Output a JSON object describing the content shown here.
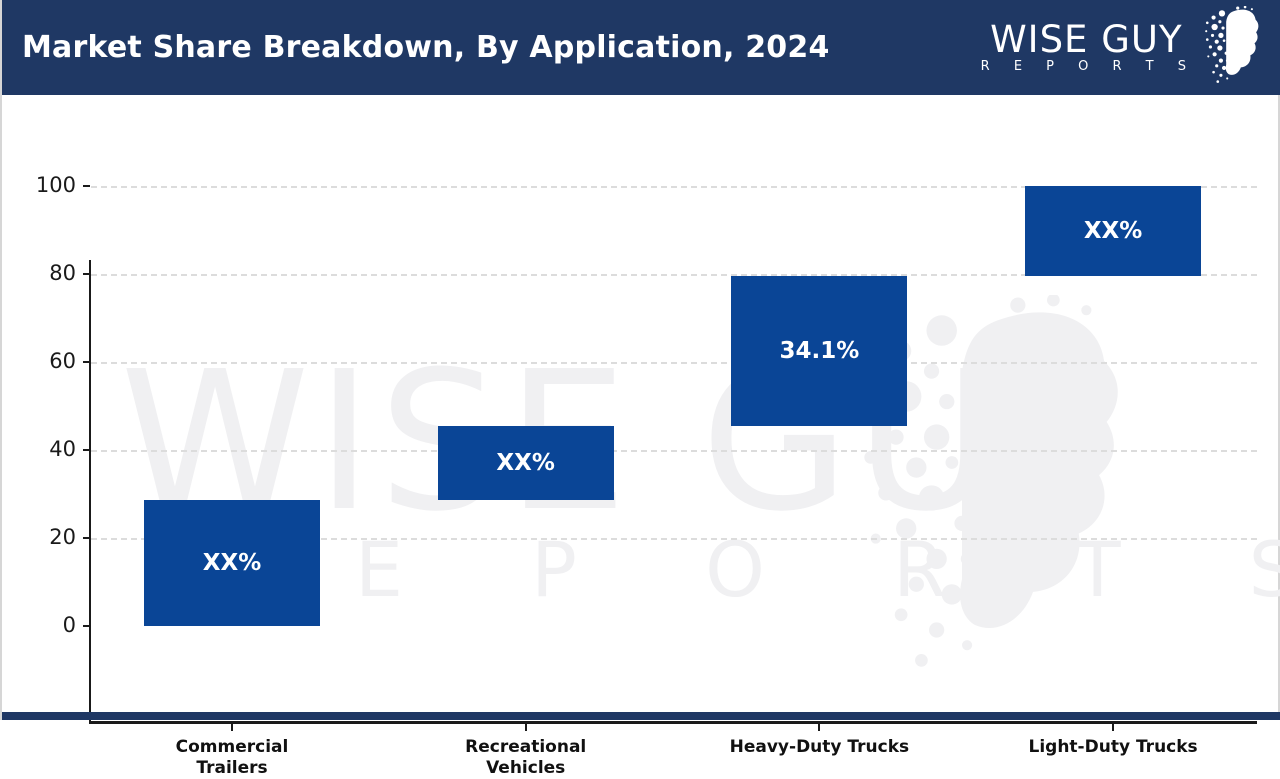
{
  "header": {
    "bg": "#1f3864",
    "title": "Market Share Breakdown, By Application, 2024",
    "logo_line1": "WISE GUY",
    "logo_line2": "R E P O R T S"
  },
  "watermark": {
    "line1": "WISE GU",
    "line2": "R E P O R T S"
  },
  "chart_data": {
    "type": "bar",
    "subtype": "floating_segment_waterfall",
    "title": "Market Share Breakdown, By Application, 2024",
    "categories": [
      "Commercial\nTrailers",
      "Recreational\nVehicles",
      "Heavy-Duty Trucks",
      "Light-Duty Trucks"
    ],
    "series": [
      {
        "name": "Market Share (%)",
        "segments": [
          {
            "category": "Commercial Trailers",
            "from": 0,
            "to": 28.6,
            "label": "XX%"
          },
          {
            "category": "Recreational Vehicles",
            "from": 28.6,
            "to": 45.5,
            "label": "XX%"
          },
          {
            "category": "Heavy-Duty Trucks",
            "from": 45.5,
            "to": 79.6,
            "label": "34.1%"
          },
          {
            "category": "Light-Duty Trucks",
            "from": 79.6,
            "to": 100,
            "label": "XX%"
          }
        ]
      }
    ],
    "xlabel": "",
    "ylabel": "",
    "ylim": [
      0,
      100
    ],
    "yticks": [
      0,
      20,
      40,
      60,
      80,
      100
    ],
    "grid": "horizontal_dashed",
    "legend": "none",
    "colors": {
      "bar": "#0a4596",
      "bar_label": "#ffffff",
      "axis": "#1a1a1a",
      "tick_label": "#1a1a1a",
      "gridline": "#dcdcdc",
      "header_bg": "#1f3864",
      "watermark": "#f0f0f2"
    }
  }
}
